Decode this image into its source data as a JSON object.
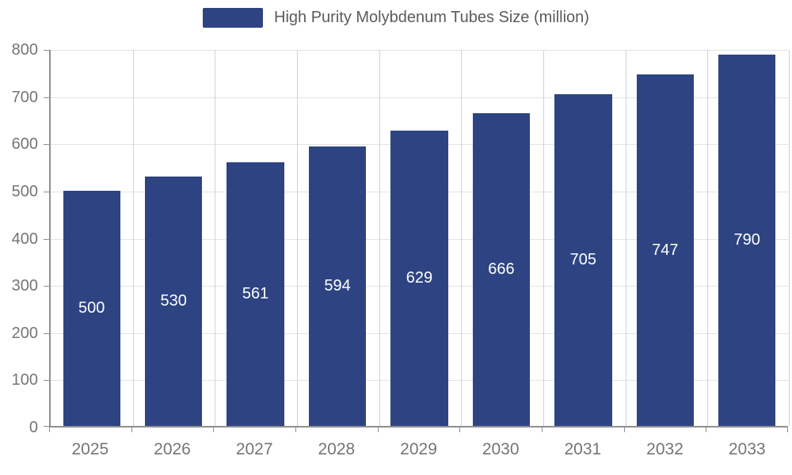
{
  "legend": {
    "label": "High Purity Molybdenum Tubes Size (million)"
  },
  "colors": {
    "bar": "#2e4482",
    "axis": "#8f8f8f",
    "grid_vertical": "#d2d2d2",
    "grid_horizontal": "#e3e3e3",
    "tick_text": "#757575",
    "value_label": "#ffffff",
    "background": "#ffffff"
  },
  "chart_data": {
    "type": "bar",
    "title": "High Purity Molybdenum Tubes Size (million)",
    "categories": [
      "2025",
      "2026",
      "2027",
      "2028",
      "2029",
      "2030",
      "2031",
      "2032",
      "2033"
    ],
    "values": [
      500,
      530,
      561,
      594,
      629,
      666,
      705,
      747,
      790
    ],
    "xlabel": "",
    "ylabel": "",
    "ylim": [
      0,
      800
    ],
    "yticks": [
      0,
      100,
      200,
      300,
      400,
      500,
      600,
      700,
      800
    ],
    "grid": true,
    "legend_position": "top",
    "value_labels_position": "inside-center",
    "bar_width_fraction": 0.7
  }
}
